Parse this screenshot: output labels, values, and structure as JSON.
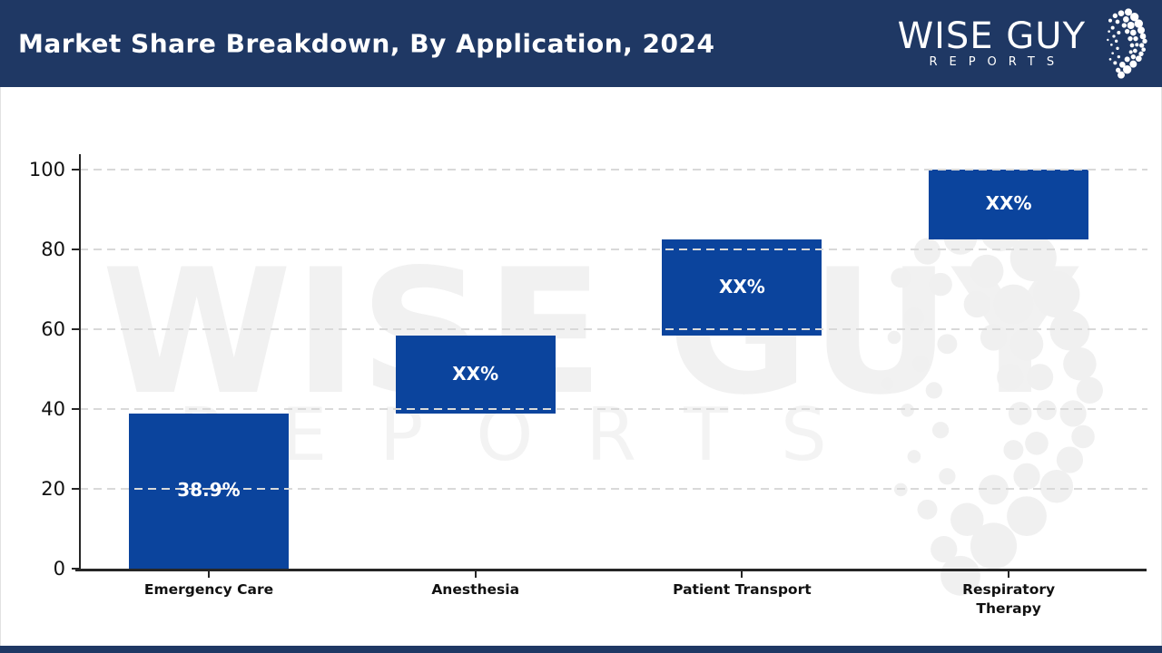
{
  "header": {
    "title": "Market Share Breakdown, By Application, 2024"
  },
  "logo": {
    "line1": "WISE GUY",
    "line2": "REPORTS"
  },
  "watermark": {
    "line1": "WISE GUY",
    "line2": "REPORTS"
  },
  "colors": {
    "header_bg": "#1f3864",
    "footer_bg": "#1f3864",
    "bar": "#0b449d",
    "bar_label": "#ffffff",
    "grid": "#d9d9d9",
    "axis": "#262626",
    "watermark": "#f1f1f1"
  },
  "chart_data": {
    "type": "bar",
    "subtype": "floating-waterfall",
    "title": "Market Share Breakdown, By Application, 2024",
    "categories": [
      "Emergency Care",
      "Anesthesia",
      "Patient Transport",
      "Respiratory Therapy"
    ],
    "category_label_lines": [
      [
        "Emergency Care"
      ],
      [
        "Anesthesia"
      ],
      [
        "Patient Transport"
      ],
      [
        "Respiratory",
        "Therapy"
      ]
    ],
    "segments": [
      {
        "category": "Emergency Care",
        "label": "38.9%",
        "start": 0,
        "end": 38.9
      },
      {
        "category": "Anesthesia",
        "label": "XX%",
        "start": 38.9,
        "end": 58.4
      },
      {
        "category": "Patient Transport",
        "label": "XX%",
        "start": 58.4,
        "end": 82.6
      },
      {
        "category": "Respiratory Therapy",
        "label": "XX%",
        "start": 82.6,
        "end": 100
      }
    ],
    "ylim": [
      0,
      100
    ],
    "yticks": [
      0,
      20,
      40,
      60,
      80,
      100
    ],
    "xlabel": "",
    "ylabel": "",
    "grid": "horizontal-dashed",
    "legend": "none",
    "bar_color": "#0b449d"
  }
}
